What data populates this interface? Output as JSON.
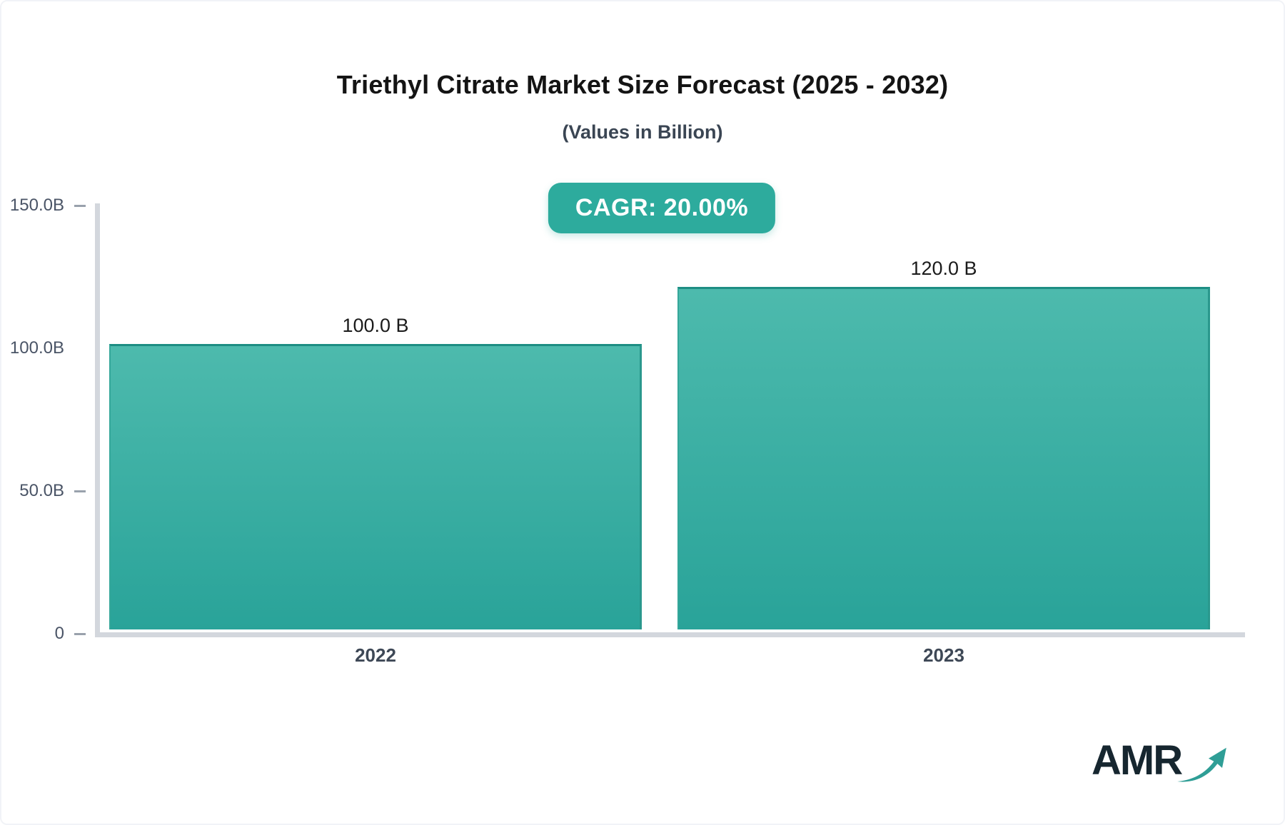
{
  "header": {
    "title": "Triethyl Citrate Market Size Forecast (2025 - 2032)",
    "subtitle": "(Values in Billion)",
    "cagr_label": "CAGR: 20.00%"
  },
  "chart_data": {
    "type": "bar",
    "title": "Triethyl Citrate Market Size Forecast (2025 - 2032)",
    "subtitle": "(Values in Billion)",
    "cagr_percent": 20.0,
    "unit": "Billion",
    "categories": [
      "2022",
      "2023"
    ],
    "values": [
      100.0,
      120.0
    ],
    "bar_labels": [
      "100.0 B",
      "120.0 B"
    ],
    "ylim": [
      0,
      150
    ],
    "y_axis": [
      {
        "label": "150.0B",
        "value": 150,
        "dash": true
      },
      {
        "label": "100.0B",
        "value": 100,
        "dash": false
      },
      {
        "label": "50.0B",
        "value": 50,
        "dash": true
      },
      {
        "label": "0",
        "value": 0,
        "dash": true
      }
    ],
    "grid": false,
    "legend": false
  },
  "branding": {
    "logo_text": "AMR",
    "logo_arrow": "trend-up-arrow"
  },
  "colors": {
    "accent": "#2dab9d",
    "badge_bg": "#2dab9d",
    "badge_text": "#ffffff",
    "bar_gradient_top": "#4dbaad",
    "bar_gradient_bottom": "#29a399",
    "bar_border": "#1d8d83",
    "axis_line": "#d3d7dd",
    "dash_color": "#99a1ac",
    "tick_text": "#4a5466",
    "xlabel_text": "#3e4856",
    "title_text": "#141414",
    "subtitle_text": "#3a4553",
    "logo_text_color": "#16262f",
    "logo_arrow_color": "#2f9e96"
  }
}
